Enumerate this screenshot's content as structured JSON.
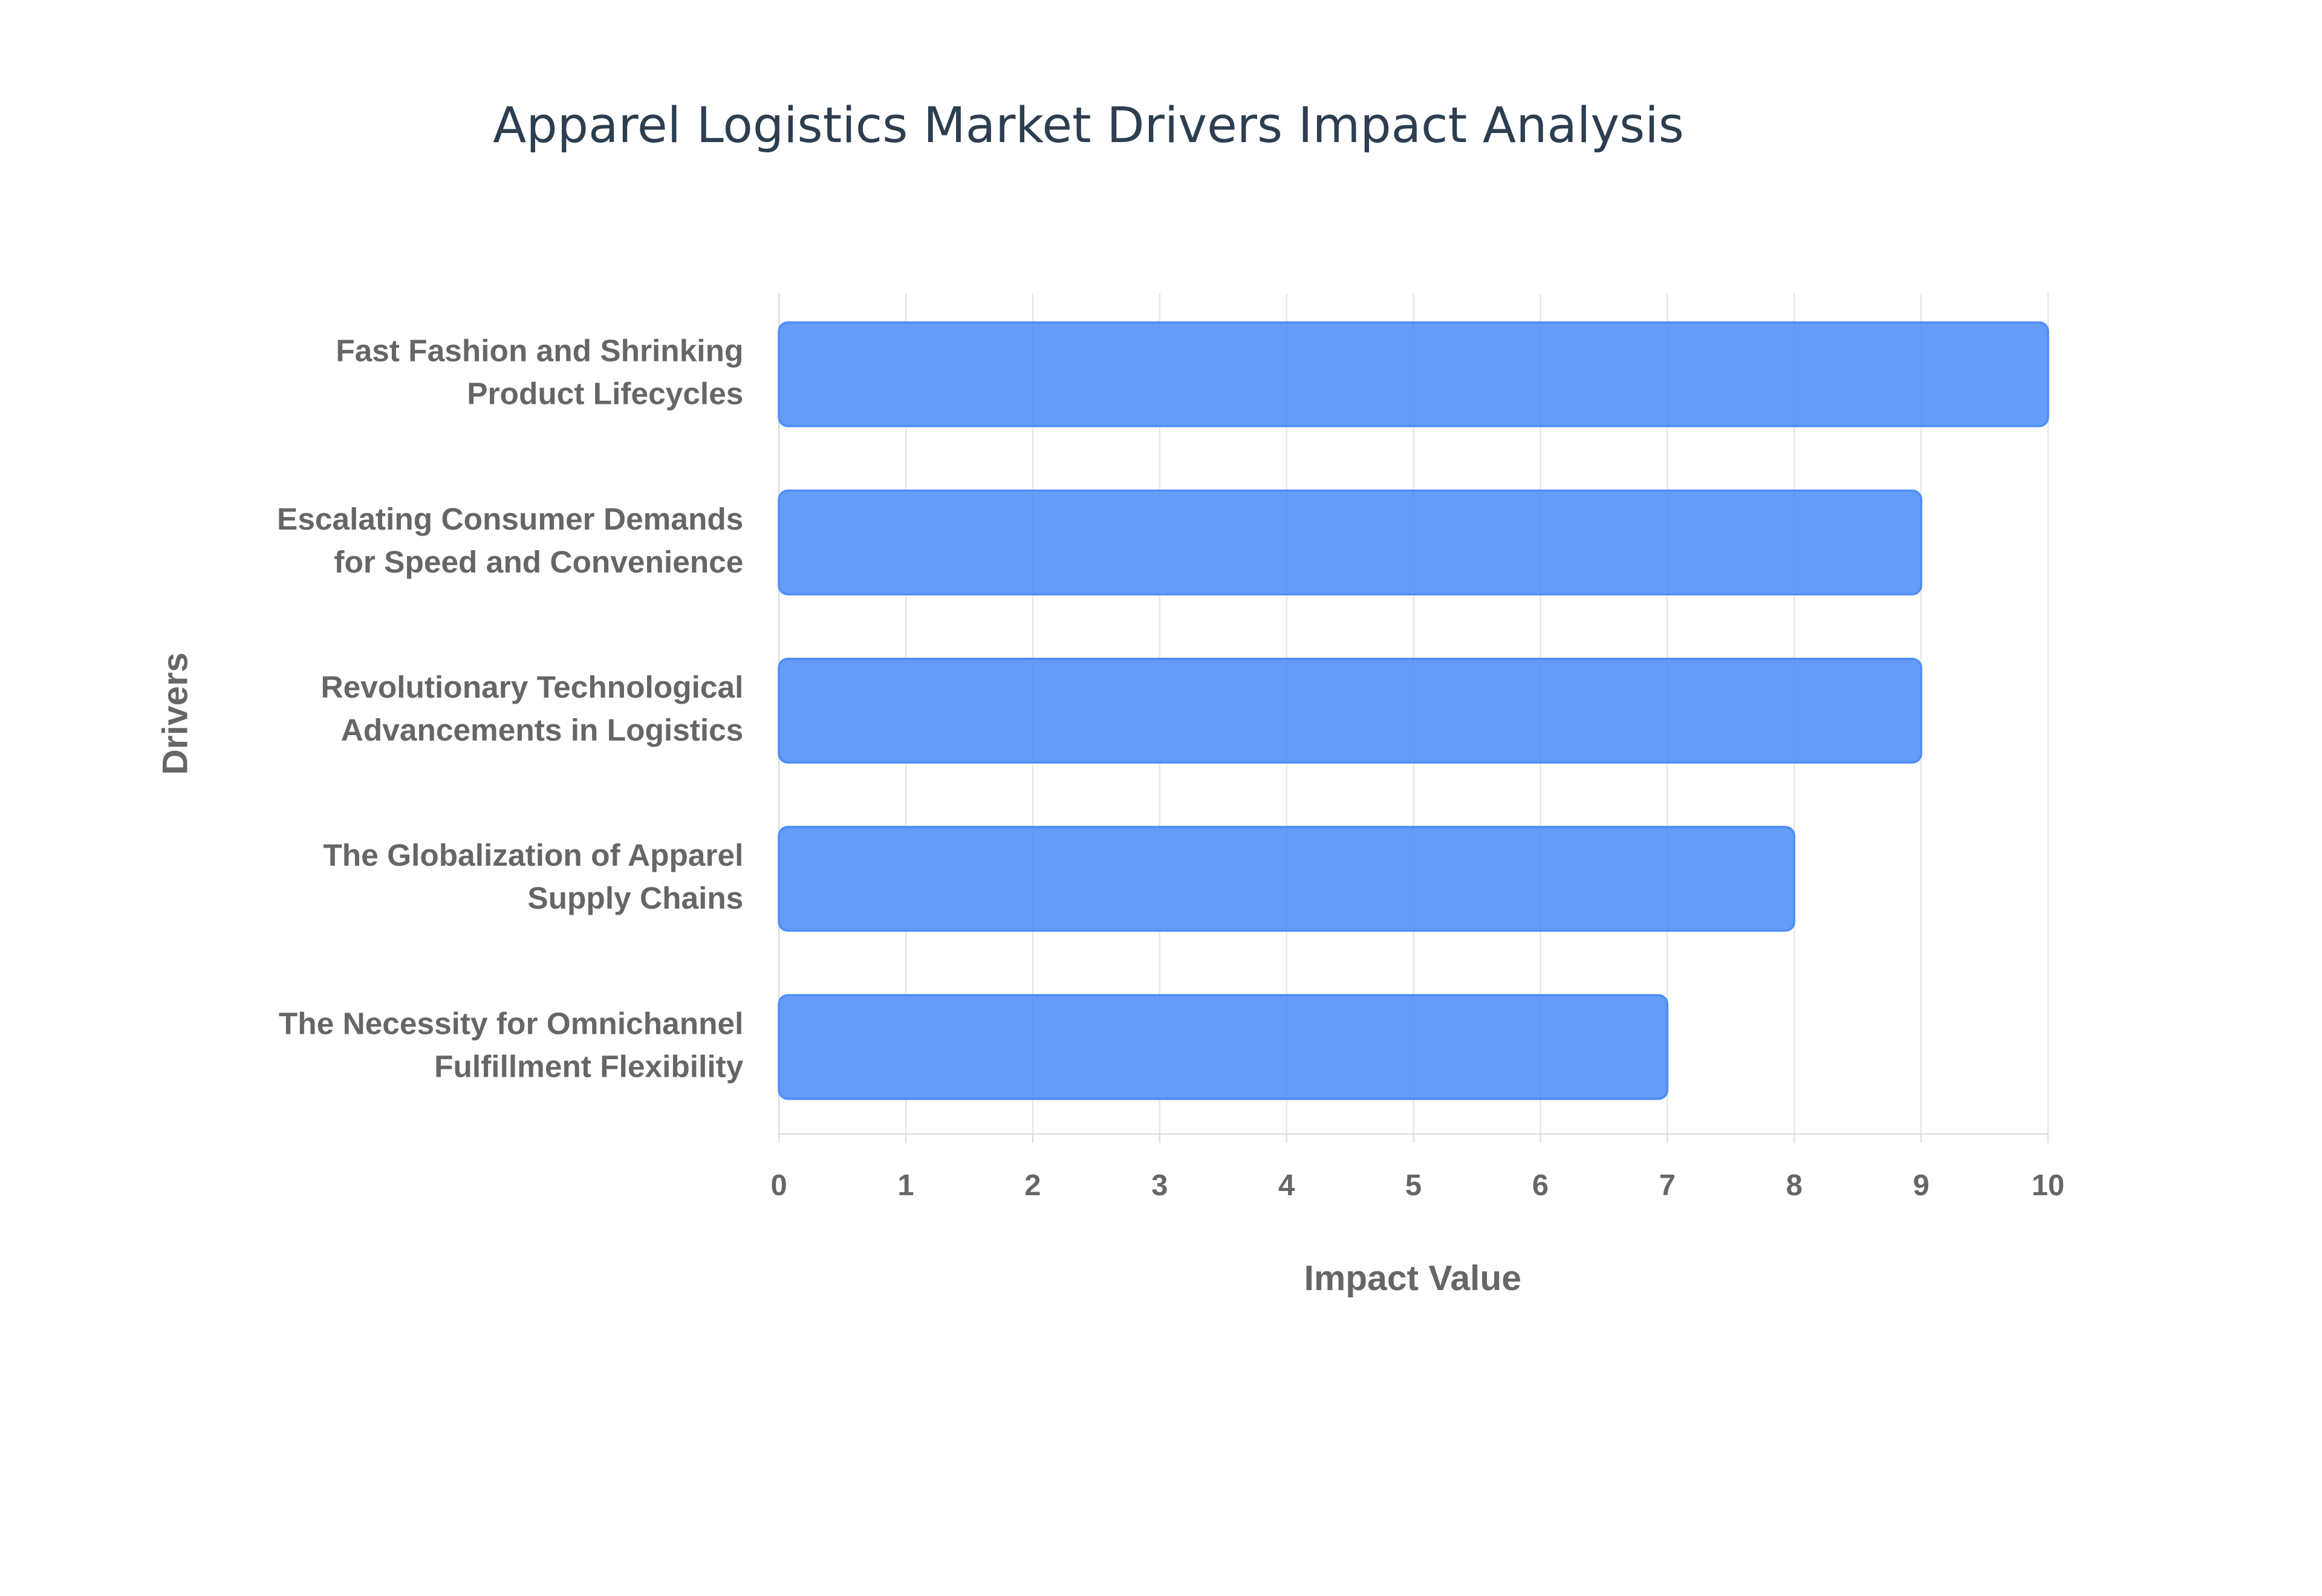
{
  "chart_data": {
    "type": "bar",
    "orientation": "horizontal",
    "title": "Apparel Logistics Market Drivers Impact Analysis",
    "x_label": "Impact Value",
    "y_label": "Drivers",
    "categories": [
      "Fast Fashion and Shrinking Product Lifecycles",
      "Escalating Consumer Demands for Speed and Convenience",
      "Revolutionary Technological Advancements in Logistics",
      "The Globalization of Apparel Supply Chains",
      "The Necessity for Omnichannel Fulfillment Flexibility"
    ],
    "values": [
      10,
      9,
      9,
      8,
      7
    ],
    "color": "#4f8ef7",
    "xlim": [
      0,
      10
    ],
    "xticks": [
      0,
      1,
      2,
      3,
      4,
      5,
      6,
      7,
      8,
      9,
      10
    ],
    "grid": true
  }
}
